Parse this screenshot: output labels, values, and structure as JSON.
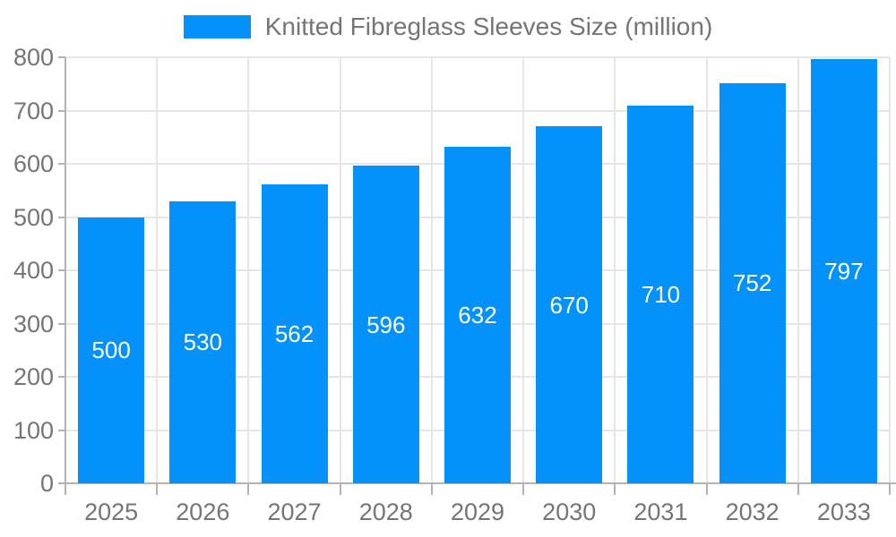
{
  "legend": {
    "label": "Knitted Fibreglass Sleeves Size (million)"
  },
  "colors": {
    "bar": "#0591fa",
    "grid": "#e6e6e6",
    "axis": "#b3b3b3",
    "axis_text": "#757575",
    "bar_label": "#ffffff",
    "background": "#ffffff"
  },
  "chart_data": {
    "type": "bar",
    "title": "Knitted Fibreglass Sleeves Size (million)",
    "categories": [
      "2025",
      "2026",
      "2027",
      "2028",
      "2029",
      "2030",
      "2031",
      "2032",
      "2033"
    ],
    "values": [
      500,
      530,
      562,
      596,
      632,
      670,
      710,
      752,
      797
    ],
    "xlabel": "",
    "ylabel": "",
    "ylim": [
      0,
      800
    ],
    "ytick_step": 100,
    "yticks": [
      0,
      100,
      200,
      300,
      400,
      500,
      600,
      700,
      800
    ],
    "grid": true,
    "legend_position": "top",
    "value_label_position": "inside-middle"
  }
}
